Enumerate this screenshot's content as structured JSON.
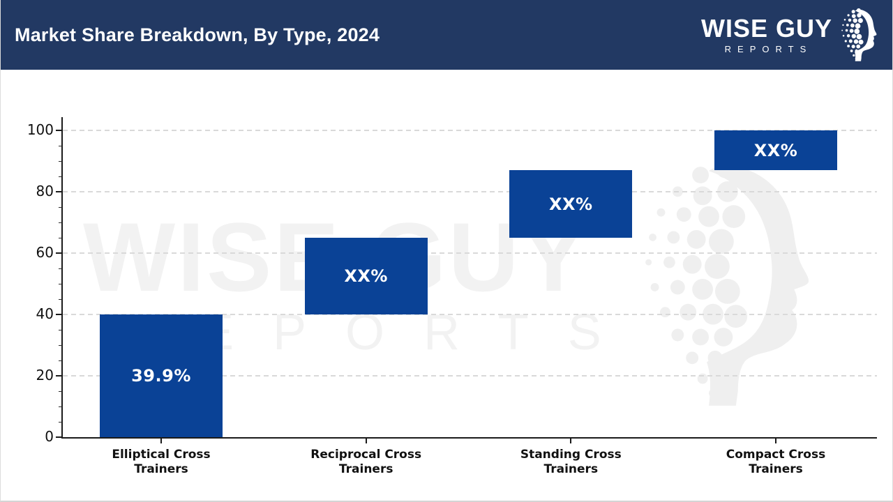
{
  "header": {
    "title": "Market Share Breakdown, By Type, 2024",
    "bg_color": "#223963",
    "logo": {
      "wordmark": "WISE GUY",
      "subtext": "REPORTS"
    }
  },
  "watermark": {
    "line1": "WISE GUY",
    "line2": "REPORTS"
  },
  "chart_data": {
    "type": "bar",
    "subtype": "waterfall",
    "title": "Market Share Breakdown, By Type, 2024",
    "categories": [
      "Elliptical Cross Trainers",
      "Reciprocal Cross Trainers",
      "Standing Cross Trainers",
      "Compact Cross Trainers"
    ],
    "series": [
      {
        "name": "Market share (%)",
        "segments": [
          {
            "start": 0,
            "end": 39.9,
            "label": "39.9%"
          },
          {
            "start": 39.9,
            "end": 65,
            "label": "XX%"
          },
          {
            "start": 65,
            "end": 87,
            "label": "XX%"
          },
          {
            "start": 87,
            "end": 100,
            "label": "XX%"
          }
        ]
      }
    ],
    "bar_color": "#0a4296",
    "bar_label_color": "#ffffff",
    "yticks": [
      0,
      20,
      40,
      60,
      80,
      100
    ],
    "minor_tick_step": 5,
    "ylim": [
      0,
      104
    ],
    "xlabel": "",
    "ylabel": "",
    "grid": {
      "axis": "y",
      "style": "dashed",
      "color": "#d9d9d9"
    },
    "legend": "none"
  }
}
